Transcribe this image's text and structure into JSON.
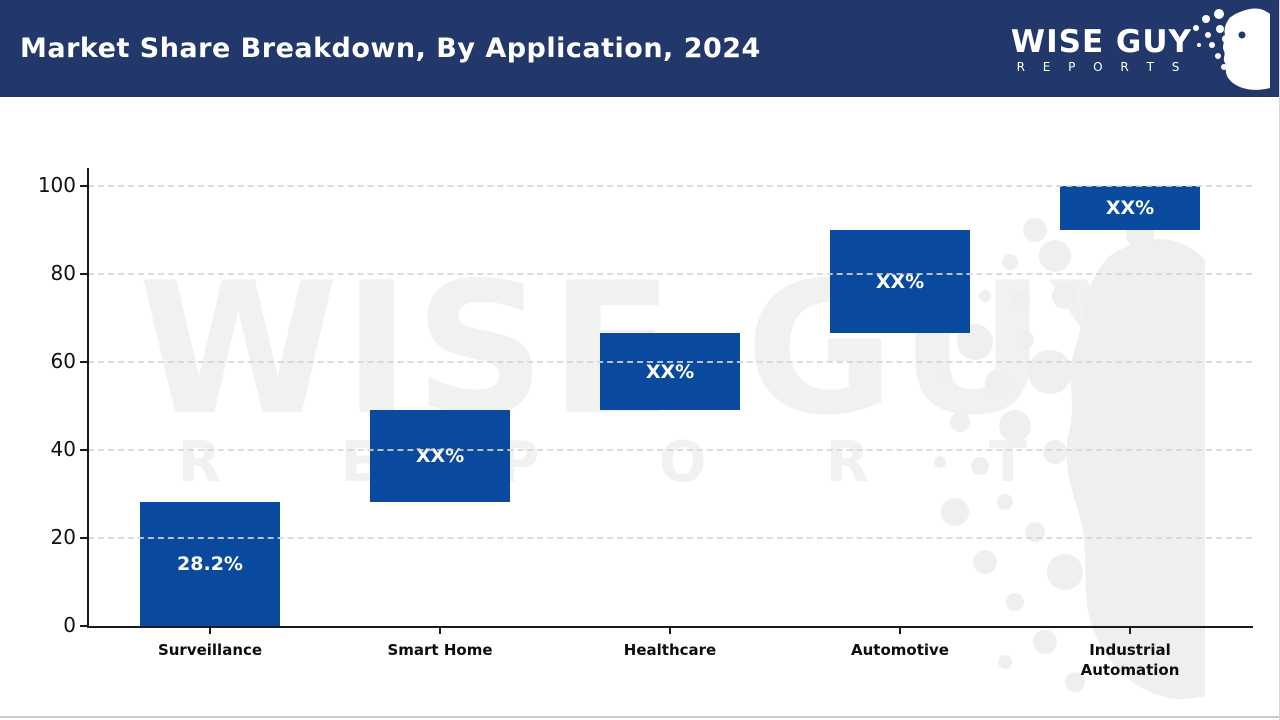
{
  "header": {
    "title": "Market Share Breakdown, By Application, 2024",
    "bg_color": "#22386A",
    "logo": {
      "line1": "WISE GUY",
      "line2": "R E P O R T S",
      "face_icon": "dotted-head-profile"
    }
  },
  "watermark": {
    "line1": "WISE GUY",
    "line2": "R E P O R T S",
    "face_icon": "dotted-head-profile"
  },
  "chart_data": {
    "type": "bar",
    "subtype": "waterfall-floating-bars",
    "title": "Market Share Breakdown, By Application, 2024",
    "categories": [
      "Surveillance",
      "Smart Home",
      "Healthcare",
      "Automotive",
      "Industrial Automation"
    ],
    "series": [
      {
        "name": "Market share (%)",
        "segments": [
          {
            "category": "Surveillance",
            "start": 0,
            "end": 28.2,
            "label": "28.2%"
          },
          {
            "category": "Smart Home",
            "start": 28.2,
            "end": 49.0,
            "label": "XX%"
          },
          {
            "category": "Healthcare",
            "start": 49.0,
            "end": 66.5,
            "label": "XX%"
          },
          {
            "category": "Automotive",
            "start": 66.5,
            "end": 90.0,
            "label": "XX%"
          },
          {
            "category": "Industrial Automation",
            "start": 90.0,
            "end": 100.0,
            "label": "XX%"
          }
        ]
      }
    ],
    "xlabel": "",
    "ylabel": "",
    "ylim": [
      0,
      100
    ],
    "yticks": [
      0,
      20,
      40,
      60,
      80,
      100
    ],
    "grid": "horizontal-dashed",
    "legend": "none",
    "bar_color": "#0A4A9E",
    "bar_label_color": "#ffffff",
    "axis_color": "#1a1a1a",
    "gridline_color": "#d6d6d6"
  }
}
